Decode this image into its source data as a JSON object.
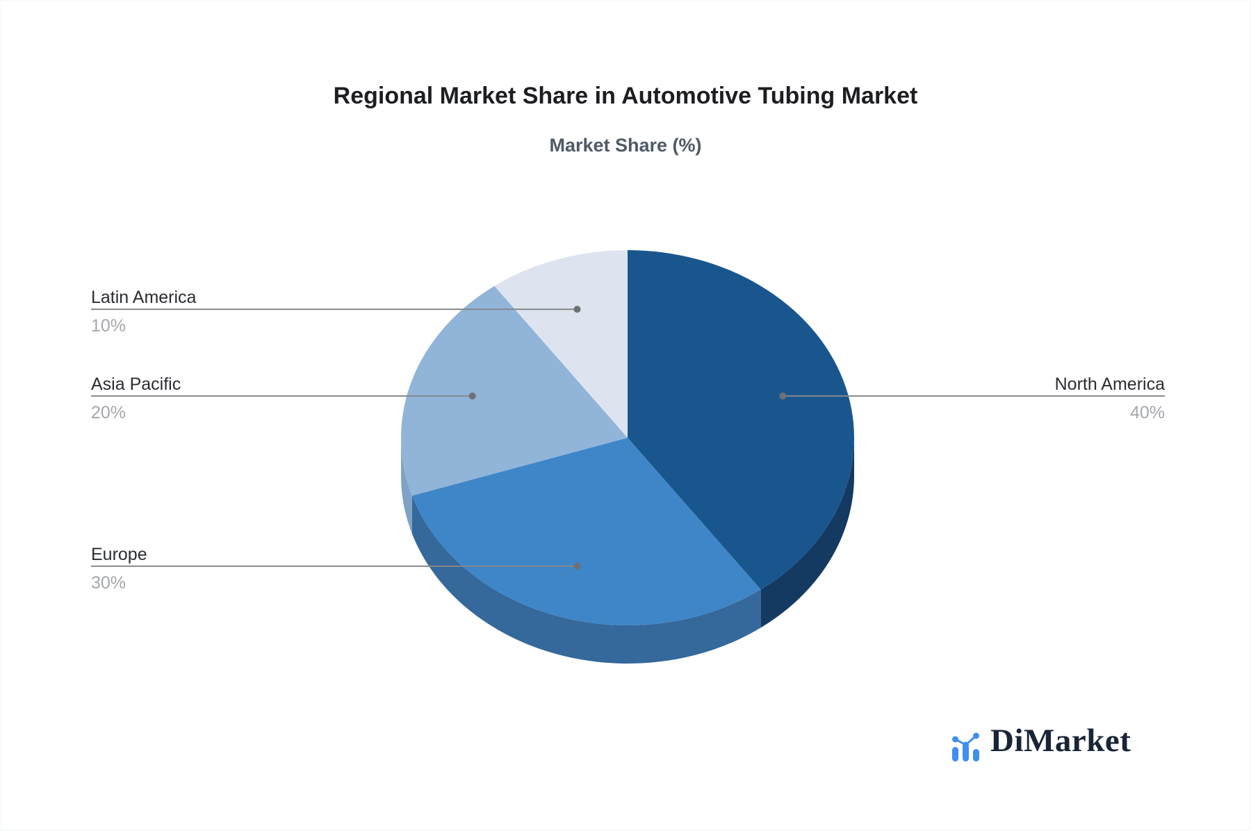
{
  "title": "Regional Market Share in Automotive Tubing Market",
  "subtitle": "Market Share (%)",
  "brand": {
    "name": "DiMarket",
    "icon": "bar-line-chart-icon",
    "icon_color": "#3f8ef0",
    "text_color": "#192536"
  },
  "chart_data": {
    "type": "pie",
    "title": "Regional Market Share in Automotive Tubing Market",
    "subtitle": "Market Share (%)",
    "unit": "%",
    "effect": "3d",
    "start_angle_deg": 0,
    "direction": "clockwise",
    "legend_position": "callout-labels",
    "slices": [
      {
        "label": "North America",
        "value": 40,
        "display": "40%",
        "color": "#1A568E",
        "side_color": "#153A61",
        "label_side": "right"
      },
      {
        "label": "Europe",
        "value": 30,
        "display": "30%",
        "color": "#3E86C8",
        "side_color": "#35689B",
        "label_side": "left"
      },
      {
        "label": "Asia Pacific",
        "value": 20,
        "display": "20%",
        "color": "#91B4D9",
        "side_color": "#7FA3C6",
        "label_side": "left"
      },
      {
        "label": "Latin America",
        "value": 10,
        "display": "10%",
        "color": "#DEE4EF",
        "side_color": "#B9C3D4",
        "label_side": "left"
      }
    ],
    "label_name_color": "#2a2d31",
    "label_value_color": "#a4a7ab",
    "leader_line_color": "#86888b",
    "dot_color": "#6e7073"
  }
}
